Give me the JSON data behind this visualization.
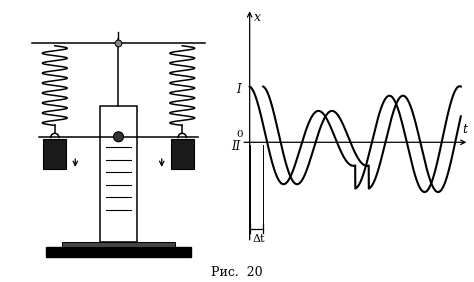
{
  "fig_width": 4.74,
  "fig_height": 2.82,
  "dpi": 100,
  "bg_color": "#ffffff",
  "caption": "Рис.  20",
  "graph": {
    "x_label": "x",
    "t_label": "t",
    "zero_label": "0",
    "I_label": "I",
    "II_label": "II",
    "delta_t_label": "Δt"
  }
}
